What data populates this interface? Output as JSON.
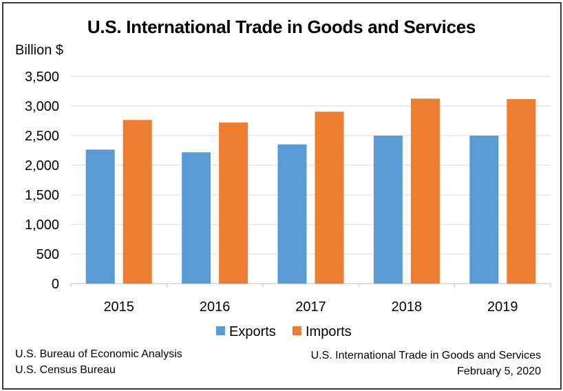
{
  "chart_data": {
    "type": "bar",
    "title": "U.S. International Trade in Goods and Services",
    "ylabel": "Billion $",
    "xlabel": "",
    "categories": [
      "2015",
      "2016",
      "2017",
      "2018",
      "2019"
    ],
    "series": [
      {
        "name": "Exports",
        "color": "#5b9bd5",
        "values": [
          2264,
          2218,
          2351,
          2500,
          2500
        ]
      },
      {
        "name": "Imports",
        "color": "#ed7d31",
        "values": [
          2764,
          2721,
          2903,
          3125,
          3117
        ]
      }
    ],
    "ylim": [
      0,
      3500
    ],
    "yticks": [
      0,
      500,
      1000,
      1500,
      2000,
      2500,
      3000,
      3500
    ],
    "ytick_labels": [
      "0",
      "500",
      "1,000",
      "1,500",
      "2,000",
      "2,500",
      "3,000",
      "3,500"
    ],
    "grid": true,
    "legend": "bottom-center"
  },
  "footer": {
    "left_line1": "U.S. Bureau of Economic Analysis",
    "left_line2": "U.S. Census Bureau",
    "right_line1": "U.S. International Trade in Goods and Services",
    "right_line2": "February 5, 2020"
  }
}
